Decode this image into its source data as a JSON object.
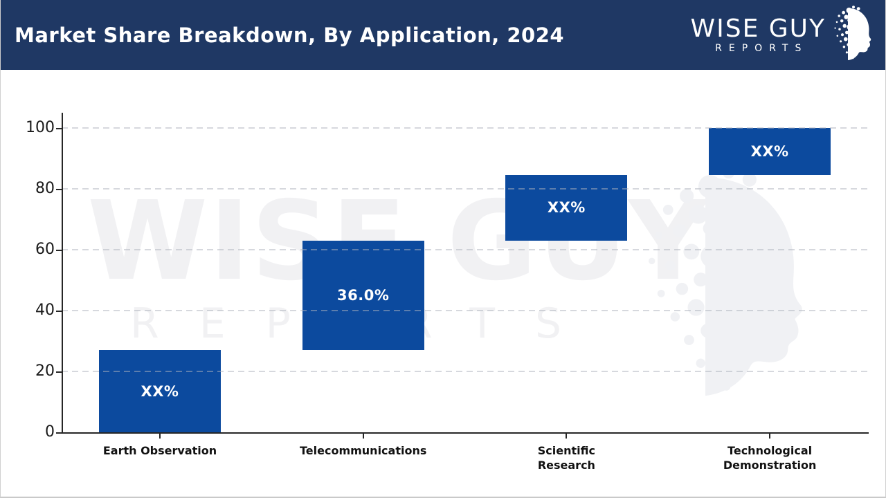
{
  "header": {
    "title": "Market Share Breakdown, By Application, 2024",
    "logo": {
      "line1": "WISE GUY",
      "line2": "REPORTS"
    }
  },
  "watermark": {
    "line1": "WISE GUY",
    "line2": "REPORTS"
  },
  "colors": {
    "header_bg": "#1f3864",
    "bar": "#0c4a9e",
    "bar_label": "#ffffff",
    "axis": "#262626",
    "tick_label": "#1a1a1a",
    "gridline": "#dfe1e6",
    "watermark": "#f1f1f3",
    "logo_text": "#ffffff"
  },
  "chart_data": {
    "type": "bar",
    "subtype": "floating-waterfall",
    "title": "Market Share Breakdown, By Application, 2024",
    "categories": [
      "Earth Observation",
      "Telecommunications",
      "Scientific Research",
      "Technological Demonstration"
    ],
    "xtick_lines": [
      [
        "Earth Observation"
      ],
      [
        "Telecommunications"
      ],
      [
        "Scientific",
        "Research"
      ],
      [
        "Technological",
        "Demonstration"
      ]
    ],
    "series": [
      {
        "name": "Market Share (%)",
        "segments": [
          {
            "category": "Earth Observation",
            "start": 0,
            "end": 27,
            "label": "XX%"
          },
          {
            "category": "Telecommunications",
            "start": 27,
            "end": 63,
            "label": "36.0%"
          },
          {
            "category": "Scientific Research",
            "start": 63,
            "end": 84.5,
            "label": "XX%"
          },
          {
            "category": "Technological Demonstration",
            "start": 84.5,
            "end": 100,
            "label": "XX%"
          }
        ]
      }
    ],
    "ylim": [
      0,
      100
    ],
    "yticks": [
      0,
      20,
      40,
      60,
      80,
      100
    ],
    "grid": "horizontal-dashed",
    "legend": false
  }
}
